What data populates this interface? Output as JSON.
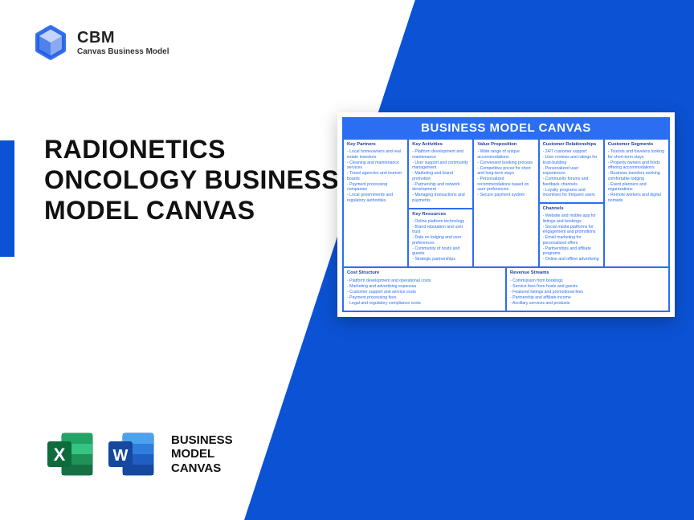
{
  "colors": {
    "primary": "#0b52d4",
    "canvas_header": "#2b6ef2",
    "text": "#111111"
  },
  "logo": {
    "brand": "CBM",
    "subtitle": "Canvas Business Model"
  },
  "title": "RADIONETICS ONCOLOGY BUSINESS MODEL CANVAS",
  "apps_label_l1": "BUSINESS",
  "apps_label_l2": "MODEL",
  "apps_label_l3": "CANVAS",
  "canvas": {
    "header": "BUSINESS MODEL CANVAS",
    "key_partners": {
      "title": "Key Partners",
      "items": [
        "Local homeowners and real estate investors",
        "Cleaning and maintenance services",
        "Travel agencies and tourism boards",
        "Payment processing companies",
        "Local governments and regulatory authorities"
      ]
    },
    "key_activities": {
      "title": "Key Activities",
      "items": [
        "Platform development and maintenance",
        "User support and community management",
        "Marketing and brand promotion",
        "Partnership and network development",
        "Managing transactions and payments"
      ]
    },
    "key_resources": {
      "title": "Key Resources",
      "items": [
        "Online platform technology",
        "Brand reputation and user trust",
        "Data on lodging and user preferences",
        "Community of hosts and guests",
        "Strategic partnerships"
      ]
    },
    "value_proposition": {
      "title": "Value Proposition",
      "items": [
        "Wide range of unique accommodations",
        "Convenient booking process",
        "Competitive prices for short and long-term stays",
        "Personalized recommendations based on user preferences",
        "Secure payment system"
      ]
    },
    "customer_relationships": {
      "title": "Customer Relationships",
      "items": [
        "24/7 customer support",
        "User reviews and ratings for trust-building",
        "Personalized user experiences",
        "Community forums and feedback channels",
        "Loyalty programs and incentives for frequent users"
      ]
    },
    "channels": {
      "title": "Channels",
      "items": [
        "Website and mobile app for listings and bookings",
        "Social media platforms for engagement and promotions",
        "Email marketing for personalized offers",
        "Partnerships and affiliate programs",
        "Online and offline advertising"
      ]
    },
    "customer_segments": {
      "title": "Customer Segments",
      "items": [
        "Tourists and travelers looking for short-term stays",
        "Property owners and hosts offering accommodations",
        "Business travelers seeking comfortable lodging",
        "Event planners and organizations",
        "Remote workers and digital nomads"
      ]
    },
    "cost_structure": {
      "title": "Cost Structure",
      "items": [
        "Platform development and operational costs",
        "Marketing and advertising expenses",
        "Customer support and service costs",
        "Payment processing fees",
        "Legal and regulatory compliance costs"
      ]
    },
    "revenue_streams": {
      "title": "Revenue Streams",
      "items": [
        "Commission from bookings",
        "Service fees from hosts and guests",
        "Featured listings and promotional fees",
        "Partnership and affiliate income",
        "Ancillary services and products"
      ]
    }
  }
}
